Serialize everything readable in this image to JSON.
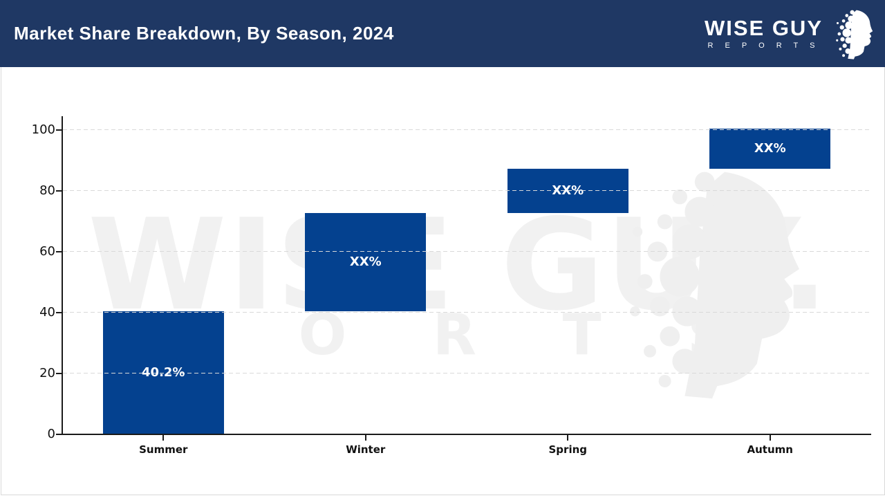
{
  "header": {
    "title": "Market Share Breakdown, By Season, 2024",
    "logo": {
      "line1": "WISE GUY",
      "line2": "R E P O R T S"
    }
  },
  "watermark": {
    "line1": "WISE GUY.",
    "line2": "P O R T S"
  },
  "colors": {
    "header_bg": "#1f3864",
    "bar": "#04418f",
    "bar_label": "#ffffff",
    "grid": "#d9d9d9",
    "axis": "#1a1a1a",
    "watermark": "#f1f1f1",
    "frame_border": "#d9d9d9",
    "title_text": "#ffffff"
  },
  "chart_data": {
    "type": "bar",
    "subtype": "waterfall",
    "title": "Market Share Breakdown, By Season, 2024",
    "categories": [
      "Summer",
      "Winter",
      "Spring",
      "Autumn"
    ],
    "segments": [
      {
        "category": "Summer",
        "start": 0,
        "end": 40.2,
        "label": "40.2%"
      },
      {
        "category": "Winter",
        "start": 40.2,
        "end": 72.5,
        "label": "XX%"
      },
      {
        "category": "Spring",
        "start": 72.5,
        "end": 87.0,
        "label": "XX%"
      },
      {
        "category": "Autumn",
        "start": 87.0,
        "end": 100.3,
        "label": "XX%"
      }
    ],
    "yticks": [
      0,
      20,
      40,
      60,
      80,
      100
    ],
    "ylim": [
      0,
      104.5
    ],
    "xlabel": "",
    "ylabel": "",
    "grid": "horizontal dashed",
    "legend": "none",
    "bar_value_labels_inside": true
  }
}
